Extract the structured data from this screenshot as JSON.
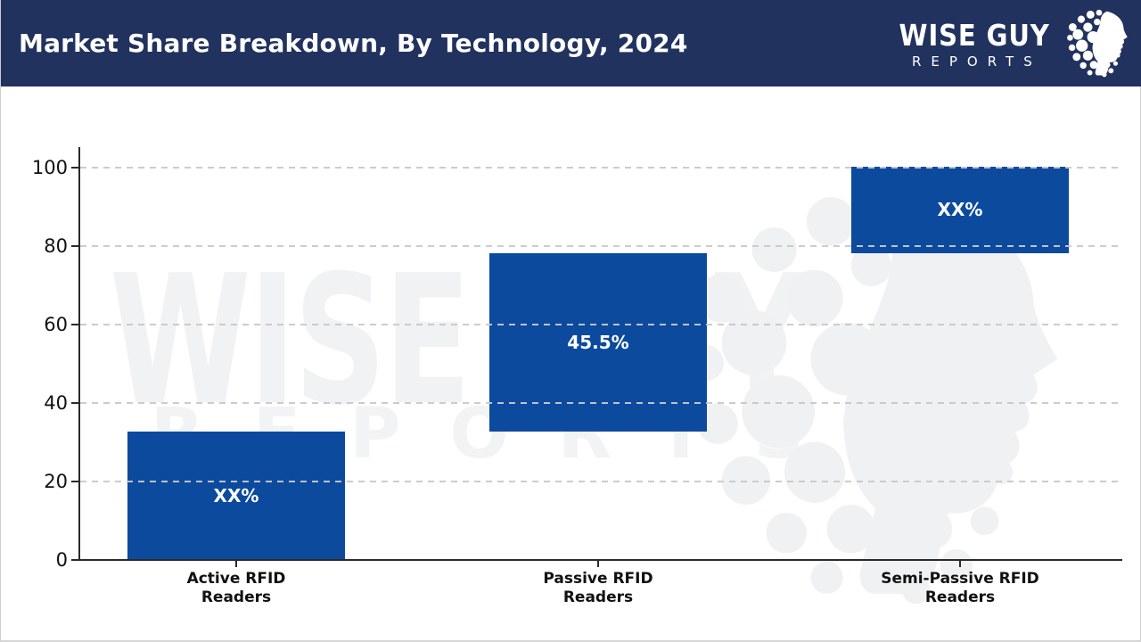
{
  "header": {
    "title": "Market Share Breakdown, By Technology, 2024",
    "logo": {
      "line1": "WISE GUY",
      "line2": "REPORTS"
    }
  },
  "watermark": {
    "line1": "WISE GUY",
    "line2": "REPORTS"
  },
  "colors": {
    "header_bg": "#21325f",
    "bar": "#0c4a9e",
    "axis": "#2a2a2a",
    "gridline": "#c9c9c9",
    "bar_label_text": "#ffffff",
    "watermark": "#f0f2f4"
  },
  "chart_data": {
    "type": "bar",
    "variant": "waterfall (floating stacked segments)",
    "title": "Market Share Breakdown, By Technology, 2024",
    "categories": [
      [
        "Active RFID",
        "Readers"
      ],
      [
        "Passive RFID",
        "Readers"
      ],
      [
        "Semi-Passive RFID",
        "Readers"
      ]
    ],
    "segments": [
      {
        "category": "Active RFID Readers",
        "start": 0,
        "end": 32.5,
        "value_label": "XX%",
        "value_estimated": 32.5
      },
      {
        "category": "Passive RFID Readers",
        "start": 32.5,
        "end": 78,
        "value_label": "45.5%",
        "value": 45.5
      },
      {
        "category": "Semi-Passive RFID Readers",
        "start": 78,
        "end": 100,
        "value_label": "XX%",
        "value_estimated": 22
      }
    ],
    "y_ticks": [
      0,
      20,
      40,
      60,
      80,
      100
    ],
    "ylim": [
      0,
      105
    ],
    "xlabel": "",
    "ylabel": "",
    "unit": "%",
    "grid": "horizontal dashed, drawn over bars",
    "legend": null,
    "bar_color": "#0c4a9e"
  }
}
